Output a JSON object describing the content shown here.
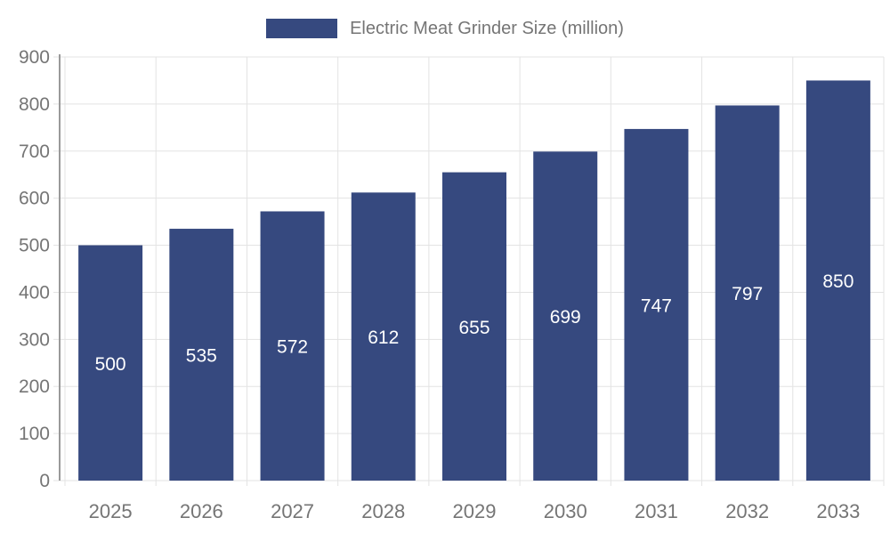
{
  "chart_data": {
    "type": "bar",
    "title": "Electric Meat Grinder Size (million)",
    "categories": [
      "2025",
      "2026",
      "2027",
      "2028",
      "2029",
      "2030",
      "2031",
      "2032",
      "2033"
    ],
    "values": [
      500,
      535,
      572,
      612,
      655,
      699,
      747,
      797,
      850
    ],
    "xlabel": "",
    "ylabel": "",
    "ylim": [
      0,
      900
    ],
    "ytick_interval": 100,
    "ytick_labels": [
      "0",
      "100",
      "200",
      "300",
      "400",
      "500",
      "600",
      "700",
      "800",
      "900"
    ],
    "grid": true,
    "legend_position": "top-center",
    "legend_entries": [
      "Electric Meat Grinder Size (million)"
    ],
    "bar_color": "#36497f",
    "value_label_color": "#ffffff",
    "grid_color": "#e3e3e3",
    "axis_line_color": "#9a9a9a",
    "tick_label_color": "#757575",
    "background_color": "#ffffff"
  }
}
